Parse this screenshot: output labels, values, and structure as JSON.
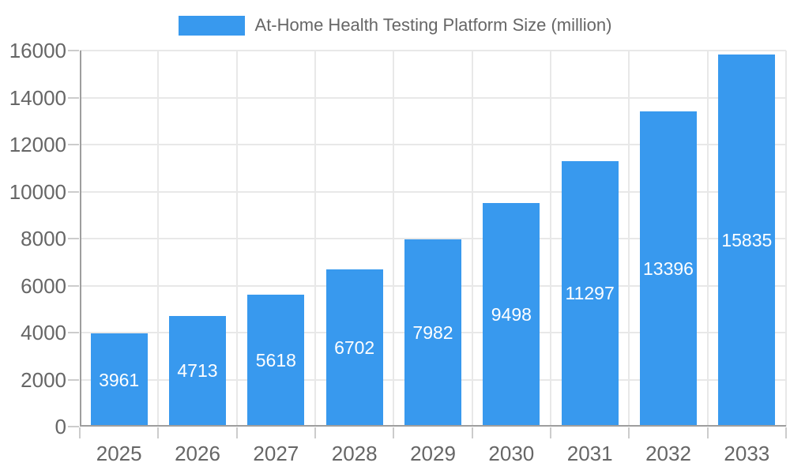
{
  "chart": {
    "legend_label": "At-Home Health Testing Platform Size (million)",
    "colors": {
      "bar": "#3899ee",
      "bar_label": "#ffffff",
      "legend_text": "#666666",
      "tick_label_text": "#666666",
      "gridline": "#e8e8e8",
      "axis_line": "#9e9e9e",
      "tick_mark": "#cccccc",
      "background": "#ffffff"
    }
  },
  "chart_data": {
    "type": "bar",
    "title": "At-Home Health Testing Platform Size (million)",
    "categories": [
      "2025",
      "2026",
      "2027",
      "2028",
      "2029",
      "2030",
      "2031",
      "2032",
      "2033"
    ],
    "values": [
      3961,
      4713,
      5618,
      6702,
      7982,
      9498,
      11297,
      13396,
      15835
    ],
    "xlabel": "",
    "ylabel": "",
    "ylim": [
      0,
      16000
    ],
    "ytick_step": 2000,
    "yticks": [
      0,
      2000,
      4000,
      6000,
      8000,
      10000,
      12000,
      14000,
      16000
    ],
    "grid": true,
    "legend_position": "top",
    "value_labels": "inside-center"
  }
}
